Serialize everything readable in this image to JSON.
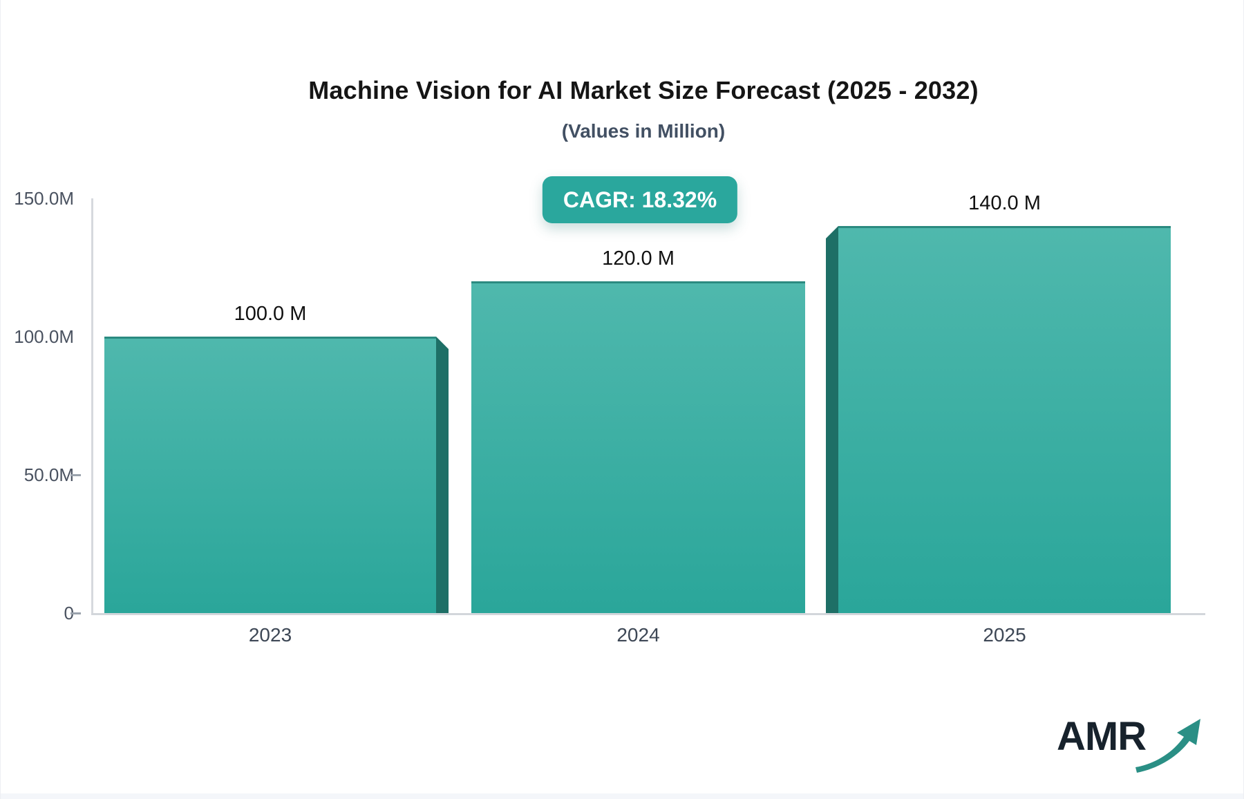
{
  "header": {
    "title": "Machine Vision for AI Market Size Forecast (2025 - 2032)",
    "subtitle": "(Values in Million)",
    "cagr_badge": "CAGR: 18.32%"
  },
  "logo": {
    "text": "AMR",
    "arrow_icon": "trend-up-arrow"
  },
  "colors": {
    "bar_gradient_top": "#4fb8ad",
    "bar_gradient_bottom": "#2aa69a",
    "bar_top_border": "#2b8a80",
    "bar_side_3d": "#1e6f66",
    "badge_bg": "#2aa79d",
    "axis_line": "#d6d9de",
    "tick_text": "#4a5260",
    "category_text": "#3d4755",
    "logo_text": "#17222c",
    "logo_arrow": "#2a8f85"
  },
  "chart_data": {
    "type": "bar",
    "title": "Machine Vision for AI Market Size Forecast (2025 - 2032)",
    "subtitle": "(Values in Million)",
    "unit": "Million",
    "cagr": "18.32%",
    "categories": [
      "2023",
      "2024",
      "2025"
    ],
    "values": [
      100.0,
      120.0,
      140.0
    ],
    "value_labels": [
      "100.0 M",
      "120.0 M",
      "140.0 M"
    ],
    "ylim": [
      0,
      150
    ],
    "yticks": [
      {
        "label": "150.0M",
        "value": 150,
        "dash": false
      },
      {
        "label": "100.0M",
        "value": 100,
        "dash": false
      },
      {
        "label": "50.0M",
        "value": 50,
        "dash": true
      },
      {
        "label": "0",
        "value": 0,
        "dash": true
      }
    ],
    "grid": false,
    "legend": false,
    "bar_style": "pseudo-3d side extrusion on first (right side) and third (left side) bars"
  }
}
